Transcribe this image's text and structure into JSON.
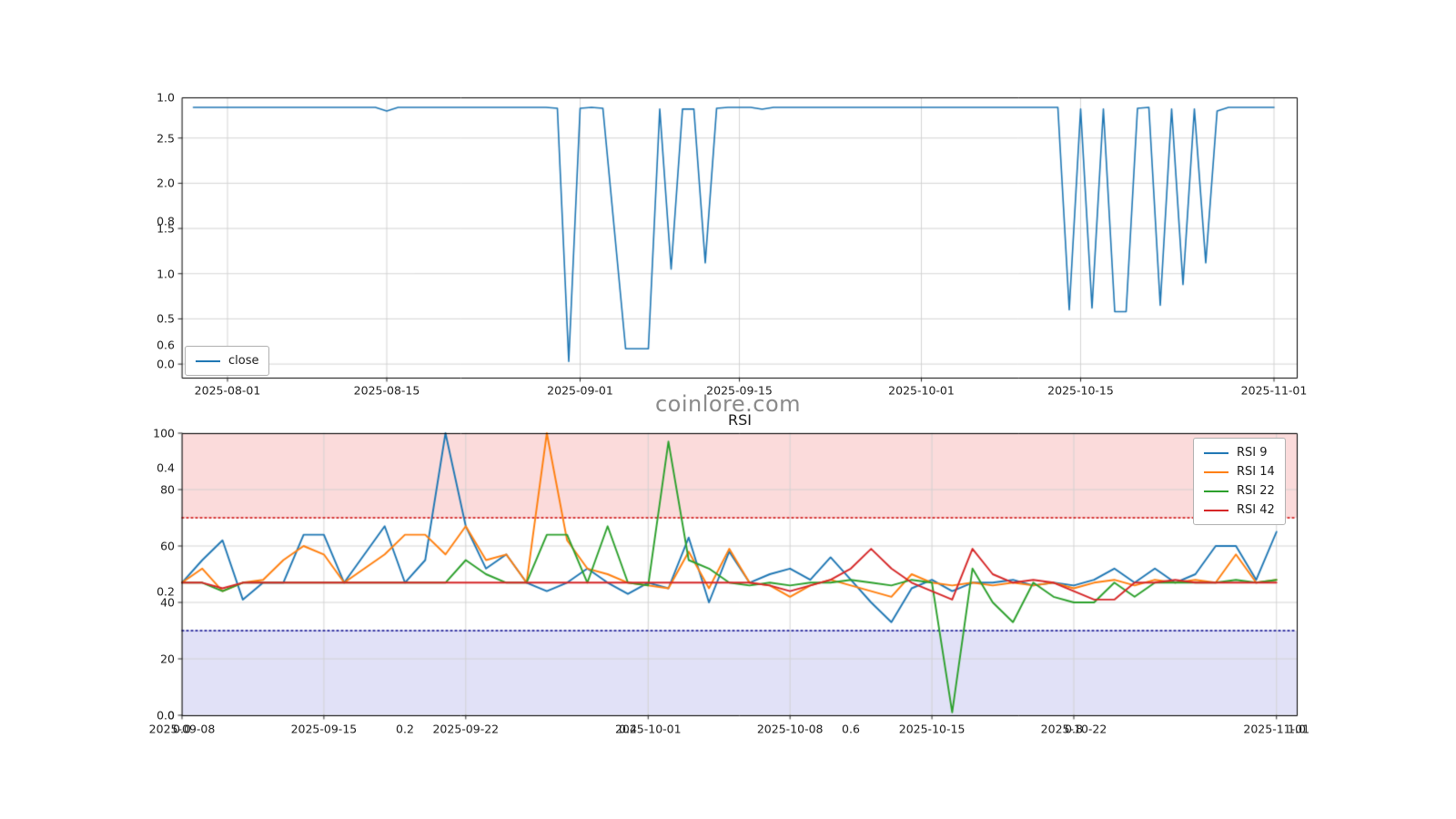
{
  "watermark": "coinlore.com",
  "figure_axis": {
    "x_ticks": [
      "0.0",
      "0.2",
      "0.4",
      "0.6",
      "0.8",
      "1.0"
    ],
    "y_ticks": [
      "0.0",
      "0.2",
      "0.4",
      "0.6",
      "0.8",
      "1.0"
    ]
  },
  "chart_data": [
    {
      "type": "line",
      "title": "",
      "xlabel": "",
      "ylabel": "",
      "legend_position": "lower left",
      "grid": true,
      "x_start": "2025-07-29",
      "interval": "daily",
      "xlim": [
        "2025-07-28",
        "2025-11-03"
      ],
      "ylim": [
        -0.15,
        2.95
      ],
      "x_ticks": [
        "2025-08-01",
        "2025-08-15",
        "2025-09-01",
        "2025-09-15",
        "2025-10-01",
        "2025-10-15",
        "2025-11-01"
      ],
      "y_ticks": [
        "0.0",
        "0.5",
        "1.0",
        "1.5",
        "2.0",
        "2.5"
      ],
      "series": [
        {
          "name": "close",
          "color": "#1f77b4",
          "values": [
            2.84,
            2.84,
            2.84,
            2.84,
            2.84,
            2.84,
            2.84,
            2.84,
            2.84,
            2.84,
            2.84,
            2.84,
            2.84,
            2.84,
            2.84,
            2.84,
            2.84,
            2.8,
            2.84,
            2.84,
            2.84,
            2.84,
            2.84,
            2.84,
            2.84,
            2.84,
            2.84,
            2.84,
            2.84,
            2.84,
            2.84,
            2.84,
            2.83,
            0.03,
            2.83,
            2.84,
            2.83,
            1.5,
            0.17,
            0.17,
            0.17,
            2.82,
            1.05,
            2.82,
            2.82,
            1.12,
            2.83,
            2.84,
            2.84,
            2.84,
            2.82,
            2.84,
            2.84,
            2.84,
            2.84,
            2.84,
            2.84,
            2.84,
            2.84,
            2.84,
            2.84,
            2.84,
            2.84,
            2.84,
            2.84,
            2.84,
            2.84,
            2.84,
            2.84,
            2.84,
            2.84,
            2.84,
            2.84,
            2.84,
            2.84,
            2.84,
            2.84,
            0.6,
            2.82,
            0.62,
            2.82,
            0.58,
            0.58,
            2.83,
            2.84,
            0.65,
            2.82,
            0.88,
            2.82,
            1.12,
            2.8,
            2.84,
            2.84,
            2.84,
            2.84,
            2.84
          ]
        }
      ]
    },
    {
      "type": "line",
      "title": "RSI",
      "xlabel": "",
      "ylabel": "",
      "legend_position": "upper right",
      "grid": true,
      "x_start": "2025-09-08",
      "interval": "daily",
      "xlim": [
        "2025-09-08",
        "2025-11-02"
      ],
      "ylim": [
        0,
        100
      ],
      "x_ticks": [
        "2025-09-08",
        "2025-09-15",
        "2025-09-22",
        "2025-10-01",
        "2025-10-08",
        "2025-10-15",
        "2025-10-22",
        "2025-11-01"
      ],
      "y_ticks": [
        "0",
        "20",
        "40",
        "60",
        "80",
        "100"
      ],
      "overbought_level": 70,
      "oversold_level": 30,
      "bands": [
        {
          "from": 70,
          "to": 100,
          "fill": "#fbdbdb",
          "edge_line": {
            "y": 70,
            "color": "#cc0000",
            "style": "dotted"
          }
        },
        {
          "from": 0,
          "to": 30,
          "fill": "#e1e1f7",
          "edge_line": {
            "y": 30,
            "color": "#00008b",
            "style": "dotted"
          }
        }
      ],
      "series": [
        {
          "name": "RSI 9",
          "color": "#1f77b4",
          "values": [
            47,
            55,
            62,
            41,
            47,
            47,
            64,
            64,
            47,
            57,
            67,
            47,
            55,
            100,
            67,
            52,
            57,
            47,
            44,
            47,
            52,
            47,
            43,
            47,
            45,
            63,
            40,
            58,
            47,
            50,
            52,
            48,
            56,
            48,
            40,
            33,
            45,
            48,
            44,
            47,
            47,
            48,
            46,
            47,
            46,
            48,
            52,
            47,
            52,
            47,
            50,
            60,
            60,
            48,
            65
          ]
        },
        {
          "name": "RSI 14",
          "color": "#ff7f0e",
          "values": [
            47,
            52,
            44,
            47,
            48,
            55,
            60,
            57,
            47,
            52,
            57,
            64,
            64,
            57,
            67,
            55,
            57,
            47,
            100,
            62,
            52,
            50,
            47,
            46,
            45,
            58,
            45,
            59,
            47,
            46,
            42,
            46,
            48,
            46,
            44,
            42,
            50,
            47,
            46,
            47,
            46,
            47,
            46,
            47,
            45,
            47,
            48,
            46,
            48,
            47,
            48,
            47,
            57,
            47,
            48
          ]
        },
        {
          "name": "RSI 22",
          "color": "#2ca02c",
          "values": [
            47,
            47,
            44,
            47,
            47,
            47,
            47,
            47,
            47,
            47,
            47,
            47,
            47,
            47,
            55,
            50,
            47,
            47,
            64,
            64,
            47,
            67,
            47,
            46,
            97,
            55,
            52,
            47,
            46,
            47,
            46,
            47,
            47,
            48,
            47,
            46,
            48,
            47,
            1,
            52,
            40,
            33,
            47,
            42,
            40,
            40,
            47,
            42,
            47,
            47,
            47,
            47,
            48,
            47,
            48
          ]
        },
        {
          "name": "RSI 42",
          "color": "#d62728",
          "values": [
            47,
            47,
            45,
            47,
            47,
            47,
            47,
            47,
            47,
            47,
            47,
            47,
            47,
            47,
            47,
            47,
            47,
            47,
            47,
            47,
            47,
            47,
            47,
            47,
            47,
            47,
            47,
            47,
            47,
            46,
            44,
            46,
            48,
            52,
            59,
            52,
            47,
            44,
            41,
            59,
            50,
            47,
            48,
            47,
            44,
            41,
            41,
            47,
            47,
            48,
            47,
            47,
            47,
            47,
            47
          ]
        }
      ]
    }
  ]
}
